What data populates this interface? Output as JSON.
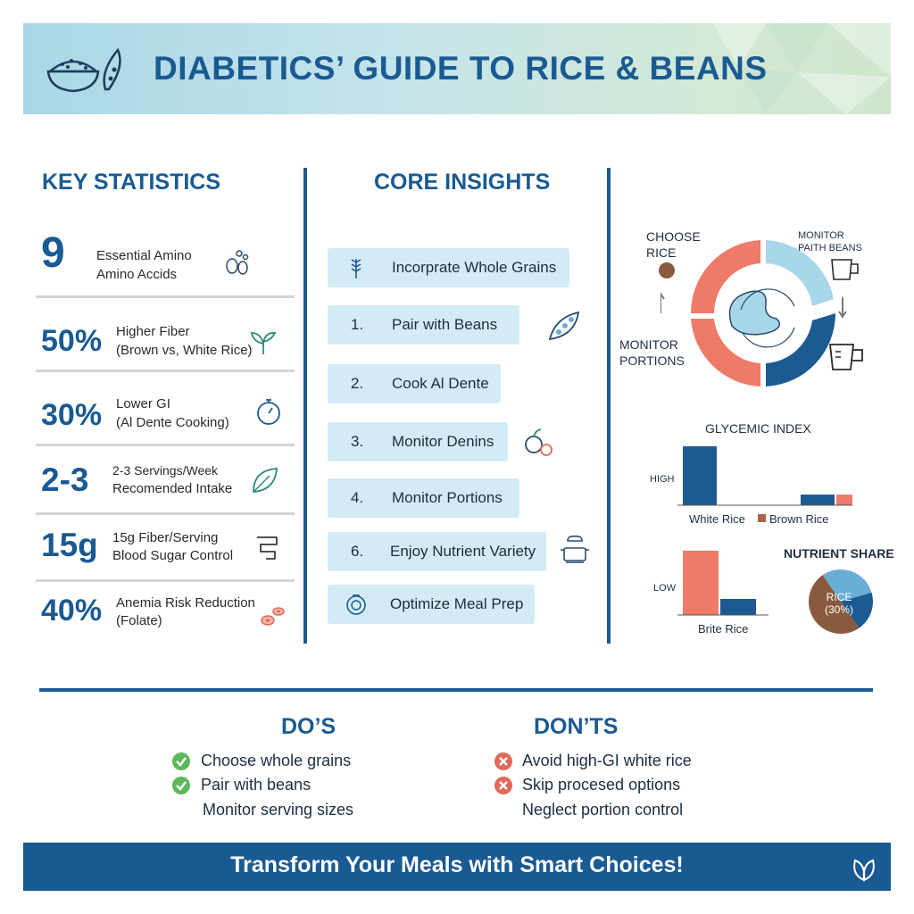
{
  "header": {
    "title": "DIABETICS’ GUIDE TO RICE & BEANS",
    "icons": [
      "rice-bowl-icon",
      "bean-pod-icon"
    ]
  },
  "key_statistics": {
    "heading": "KEY STATISTICS",
    "items": [
      {
        "value": "9",
        "line1": "Essential Amino",
        "line2": "Amino Accids",
        "icon": "beans-icon"
      },
      {
        "value": "50%",
        "line1": "Higher Fiber",
        "line2": "(Brown vs, White Rice)",
        "icon": "sprout-icon"
      },
      {
        "value": "30%",
        "line1": "Lower GI",
        "line2": "(Al Dente Cooking)",
        "icon": "stopwatch-icon"
      },
      {
        "value": "2-3",
        "line1": "2-3 Servings/Week",
        "line2": "Recomended Intake",
        "icon": "leaf-icon"
      },
      {
        "value": "15g",
        "line1": "15g Fiber/Serving",
        "line2": "Blood Sugar Control",
        "icon": "intestine-icon"
      },
      {
        "value": "40%",
        "line1": "Anemia Risk Reduction",
        "line2": "(Folate)",
        "icon": "blood-cells-icon"
      }
    ]
  },
  "core_insights": {
    "heading": "CORE INSIGHTS",
    "items": [
      {
        "num": "",
        "label": "Incorprate Whole Grains",
        "icon": "wheat-icon"
      },
      {
        "num": "1.",
        "label": "Pair with Beans",
        "icon": "bean-pod-icon"
      },
      {
        "num": "2.",
        "label": "Cook Al Dente",
        "icon": ""
      },
      {
        "num": "3.",
        "label": "Monitor Denins",
        "icon": "fruit-icon"
      },
      {
        "num": "4.",
        "label": "Monitor Portions",
        "icon": ""
      },
      {
        "num": "6.",
        "label": "Enjoy Nutrient Variety",
        "icon": "chef-pot-icon"
      },
      {
        "num": "",
        "label": "Optimize Meal Prep",
        "icon": "scale-icon"
      }
    ]
  },
  "cycle": {
    "choose_rice": [
      "CHOOSE",
      "RICE"
    ],
    "monitor_beans": [
      "MONITOR",
      "PAITH BEANS"
    ],
    "monitor_portions": [
      "MONITOR",
      "PORTIONS"
    ],
    "colors": {
      "coral": "#ee7a68",
      "light_blue": "#a9d7ea",
      "navy": "#1d5a92",
      "brown": "#8a5a3e"
    }
  },
  "chart_data": [
    {
      "type": "bar",
      "title": "GLYCEMIC INDEX",
      "ylabel_tick": "HIGH",
      "categories": [
        "White Rice",
        "Brown Rice"
      ],
      "series": [
        {
          "name": "White Rice",
          "values": [
            100,
            18
          ],
          "color": "#1d5a92"
        },
        {
          "name": "Brown Rice",
          "values": [
            0,
            18
          ],
          "color": "#ee7a68"
        }
      ],
      "legend": [
        "White Rice",
        "Brown Rice"
      ],
      "legend_colors": [
        "#1d5a92",
        "#a8644a"
      ],
      "ylim": [
        0,
        100
      ]
    },
    {
      "type": "bar",
      "ylabel_tick": "LOW",
      "categories": [
        "Brite Rice"
      ],
      "series": [
        {
          "name": "coral",
          "values": [
            100
          ],
          "color": "#ee7a68"
        },
        {
          "name": "navy",
          "values": [
            25
          ],
          "color": "#1d5a92"
        }
      ],
      "xlabel": "Brite Rice",
      "ylim": [
        0,
        100
      ]
    },
    {
      "type": "pie",
      "title": "NUTRIENT SHARE",
      "slices": [
        {
          "label": "RICE (30%)",
          "value": 30,
          "color": "#6aaed6"
        },
        {
          "label": "",
          "value": 20,
          "color": "#1d5a92"
        },
        {
          "label": "",
          "value": 50,
          "color": "#8a5a3e"
        }
      ],
      "center_label": [
        "RICE",
        "(30%)"
      ]
    }
  ],
  "dos": {
    "heading": "DO’S",
    "items": [
      {
        "text": "Choose whole grains",
        "check": true
      },
      {
        "text": "Pair with beans",
        "check": true
      },
      {
        "text": "Monitor serving sizes",
        "check": false
      }
    ],
    "color": "#5cb85c"
  },
  "donts": {
    "heading": "DON’TS",
    "items": [
      {
        "text": "Avoid high-GI white rice",
        "cross": true
      },
      {
        "text": "Skip procesed options",
        "cross": true
      },
      {
        "text": "Neglect portion control",
        "cross": false
      }
    ],
    "color": "#e06a5a"
  },
  "footer": {
    "text": "Transform Your Meals with Smart Choices!",
    "icon": "leaves-icon"
  }
}
